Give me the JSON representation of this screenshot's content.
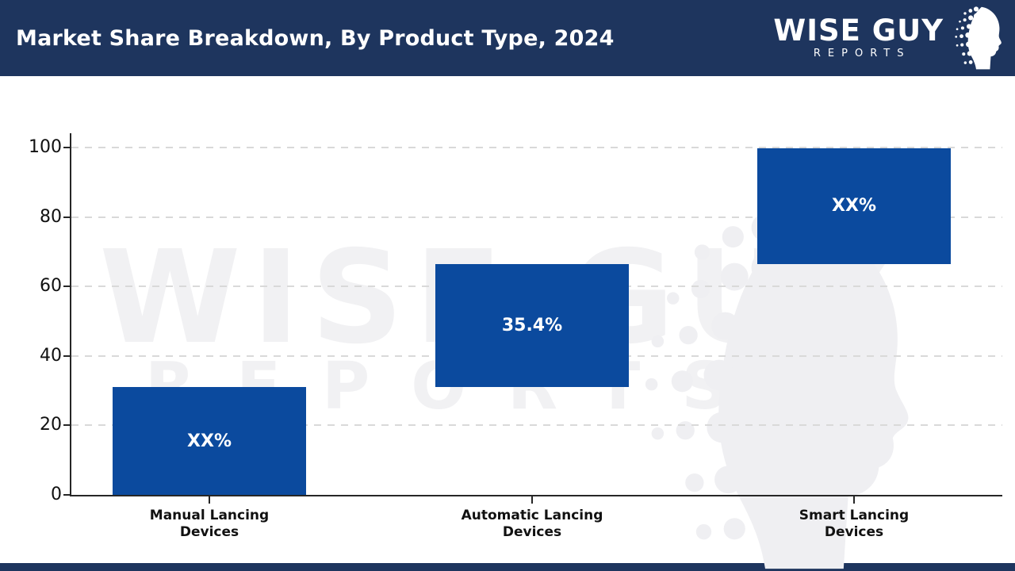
{
  "header": {
    "title": "Market Share Breakdown, By Product Type, 2024",
    "logo": {
      "line1": "WISE GUY",
      "line2": "REPORTS"
    }
  },
  "watermark": {
    "line1": "WISE GUY",
    "line2": "REPORTS"
  },
  "chart_data": {
    "type": "bar",
    "subtype": "waterfall-floating-bars",
    "title": "Market Share Breakdown, By Product Type, 2024",
    "categories": [
      "Manual Lancing Devices",
      "Automatic Lancing Devices",
      "Smart Lancing Devices"
    ],
    "category_label_lines": [
      [
        "Manual Lancing",
        "Devices"
      ],
      [
        "Automatic Lancing",
        "Devices"
      ],
      [
        "Smart Lancing",
        "Devices"
      ]
    ],
    "segments": [
      {
        "category": "Manual Lancing Devices",
        "start": 0,
        "end": 31,
        "display_label": "XX%"
      },
      {
        "category": "Automatic Lancing Devices",
        "start": 31,
        "end": 66.5,
        "display_label": "35.4%",
        "value": 35.4
      },
      {
        "category": "Smart Lancing Devices",
        "start": 66.5,
        "end": 99.8,
        "display_label": "XX%"
      }
    ],
    "y_ticks": [
      0,
      20,
      40,
      60,
      80,
      100
    ],
    "ylim": [
      0,
      104
    ],
    "xlabel": "",
    "ylabel": "",
    "grid": "horizontal-dashed",
    "legend": "none"
  },
  "colors": {
    "header_bg": "#1e355e",
    "footer_bg": "#1e355e",
    "bar": "#0b4a9e",
    "bar_label": "#ffffff",
    "grid": "#d9d9d9",
    "axis": "#262626",
    "watermark": "#f1f1f3"
  }
}
